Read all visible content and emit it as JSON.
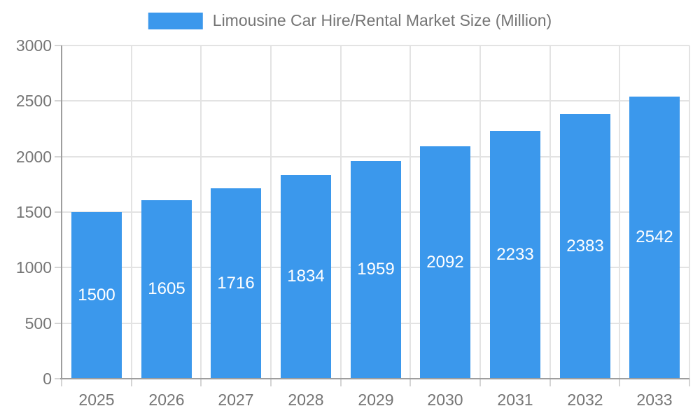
{
  "chart_data": {
    "type": "bar",
    "title": "Limousine Car Hire/Rental Market Size (Million)",
    "legend": [
      "Limousine Car Hire/Rental Market Size (Million)"
    ],
    "legend_position": "top",
    "categories": [
      "2025",
      "2026",
      "2027",
      "2028",
      "2029",
      "2030",
      "2031",
      "2032",
      "2033"
    ],
    "series": [
      {
        "name": "Limousine Car Hire/Rental Market Size (Million)",
        "values": [
          1500,
          1605,
          1716,
          1834,
          1959,
          2092,
          2233,
          2383,
          2542
        ]
      }
    ],
    "data_labels": [
      "1500",
      "1605",
      "1716",
      "1834",
      "1959",
      "2092",
      "2233",
      "2383",
      "2542"
    ],
    "xlabel": "",
    "ylabel": "",
    "ylim": [
      0,
      3000
    ],
    "yticks": [
      0,
      500,
      1000,
      1500,
      2000,
      2500,
      3000
    ],
    "grid": true,
    "colors": {
      "bar": "#3B98EC",
      "bar_label": "#ffffff",
      "axis_text": "#757575",
      "grid_line": "#e3e3e3",
      "tick_line": "#d4d4d4",
      "axis_line": "#9e9e9e",
      "legend_text": "#757575",
      "background": "#ffffff"
    }
  }
}
